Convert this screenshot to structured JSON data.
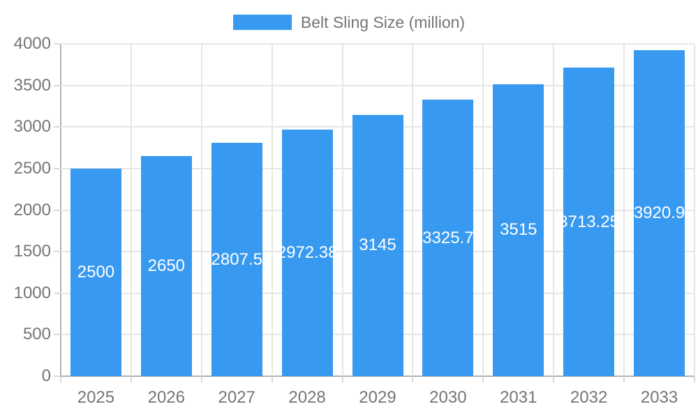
{
  "chart_data": {
    "type": "bar",
    "title": "Belt Sling Size (million)",
    "legend": {
      "position": "top",
      "label": "Belt Sling Size (million)"
    },
    "categories": [
      "2025",
      "2026",
      "2027",
      "2028",
      "2029",
      "2030",
      "2031",
      "2032",
      "2033"
    ],
    "values": [
      2500,
      2650,
      2807.5,
      2972.38,
      3145,
      3325.7,
      3515,
      3713.25,
      3920.9
    ],
    "value_labels": [
      "2500",
      "2650",
      "2807.5",
      "2972.38",
      "3145",
      "3325.7",
      "3515",
      "3713.25",
      "3920.9"
    ],
    "xlabel": "",
    "ylabel": "",
    "ylim": [
      0,
      4000
    ],
    "ytick_step": 500,
    "ytick_labels": [
      "0",
      "500",
      "1000",
      "1500",
      "2000",
      "2500",
      "3000",
      "3500",
      "4000"
    ],
    "grid": true,
    "colors": {
      "bar": "#3899f0",
      "axis_text": "#757575",
      "gridline": "#e6e6e6",
      "axis_line": "#b3b3b3",
      "tick": "#d9d9d9",
      "value_label_text": "#ffffff",
      "background": "#ffffff"
    }
  }
}
